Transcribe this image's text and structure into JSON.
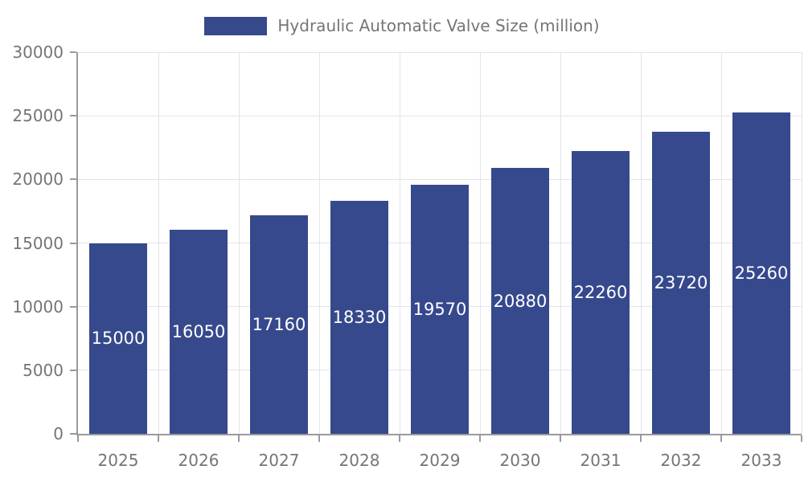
{
  "legend": {
    "label": "Hydraulic Automatic Valve Size (million)"
  },
  "chart_data": {
    "type": "bar",
    "title": "Hydraulic Automatic Valve Size (million)",
    "categories": [
      "2025",
      "2026",
      "2027",
      "2028",
      "2029",
      "2030",
      "2031",
      "2032",
      "2033"
    ],
    "values": [
      15000,
      16050,
      17160,
      18330,
      19570,
      20880,
      22260,
      23720,
      25260
    ],
    "xlabel": "",
    "ylabel": "",
    "ylim": [
      0,
      30000
    ],
    "y_ticks": [
      0,
      5000,
      10000,
      15000,
      20000,
      25000,
      30000
    ],
    "grid": true,
    "legend_position": "top-center",
    "value_labels": "inside-center",
    "colors": {
      "bar": "#36498D",
      "axis": "#9a9a9a",
      "gridline": "#e4e4ea",
      "tick_text": "#757575",
      "value_label_text": "#ffffff"
    }
  }
}
